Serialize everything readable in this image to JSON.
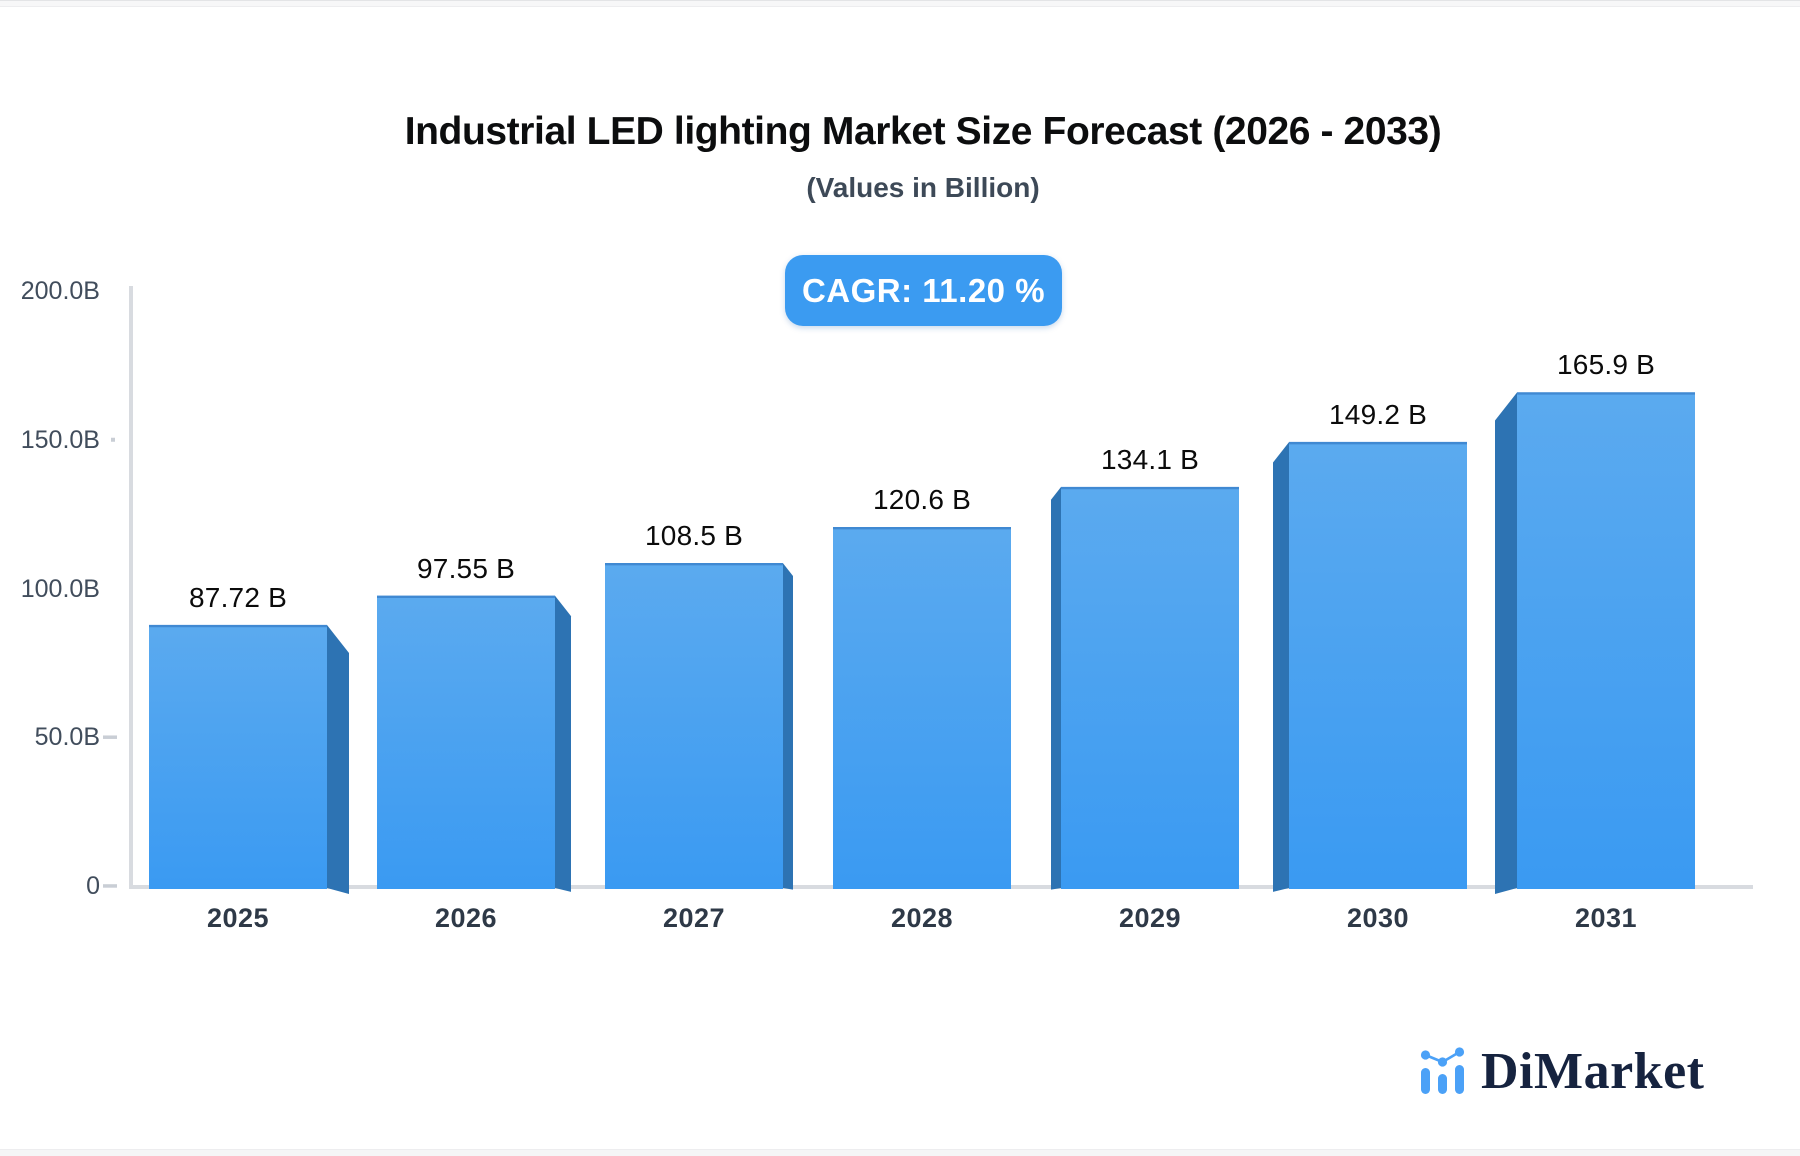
{
  "header": {
    "title": "Industrial LED lighting Market Size Forecast (2026 - 2033)",
    "subtitle": "(Values in Billion)",
    "badge_label": "CAGR: 11.20 %"
  },
  "chart_data": {
    "type": "bar",
    "title": "Industrial LED lighting Market Size Forecast (2026 - 2033)",
    "subtitle": "(Values in Billion)",
    "badge": "CAGR: 11.20 %",
    "categories": [
      "2025",
      "2026",
      "2027",
      "2028",
      "2029",
      "2030",
      "2031"
    ],
    "values": [
      87.72,
      97.55,
      108.5,
      120.6,
      134.1,
      149.2,
      165.9
    ],
    "value_labels": [
      "87.72 B",
      "97.55 B",
      "108.5 B",
      "120.6 B",
      "134.1 B",
      "149.2 B",
      "165.9 B"
    ],
    "unit": "Billion",
    "xlabel": "",
    "ylabel": "",
    "ylim": [
      0,
      200
    ],
    "ytick_values": [
      0,
      50,
      100,
      150,
      200
    ],
    "ytick_labels": [
      "0",
      "50.0B",
      "100.0B",
      "150.0B",
      "200.0B"
    ],
    "grid": false,
    "legend": false,
    "bar_style": "3d-extruded"
  },
  "logo": {
    "name": "DiMarket",
    "icon": "mini-bar-line-chart-icon"
  },
  "colors": {
    "badge_bg": "#3B9BF1",
    "badge_text": "#FFFFFF",
    "bar_face_top": "#5BAAEF",
    "bar_face_bottom": "#3A9AF2",
    "bar_top_edge": "#4089D2",
    "bar_side": "#2D73B3",
    "axis_line": "#D8DBE0",
    "tick_mark": "#C9CED5",
    "title_text": "#0C0D0E",
    "subtitle_text": "#3D4957",
    "value_label_text": "#0B0B0B",
    "axis_label_text": "#414D5C",
    "category_label_text": "#2E3947",
    "logo_text": "#16233F",
    "logo_icon": "#4BA1F7"
  }
}
